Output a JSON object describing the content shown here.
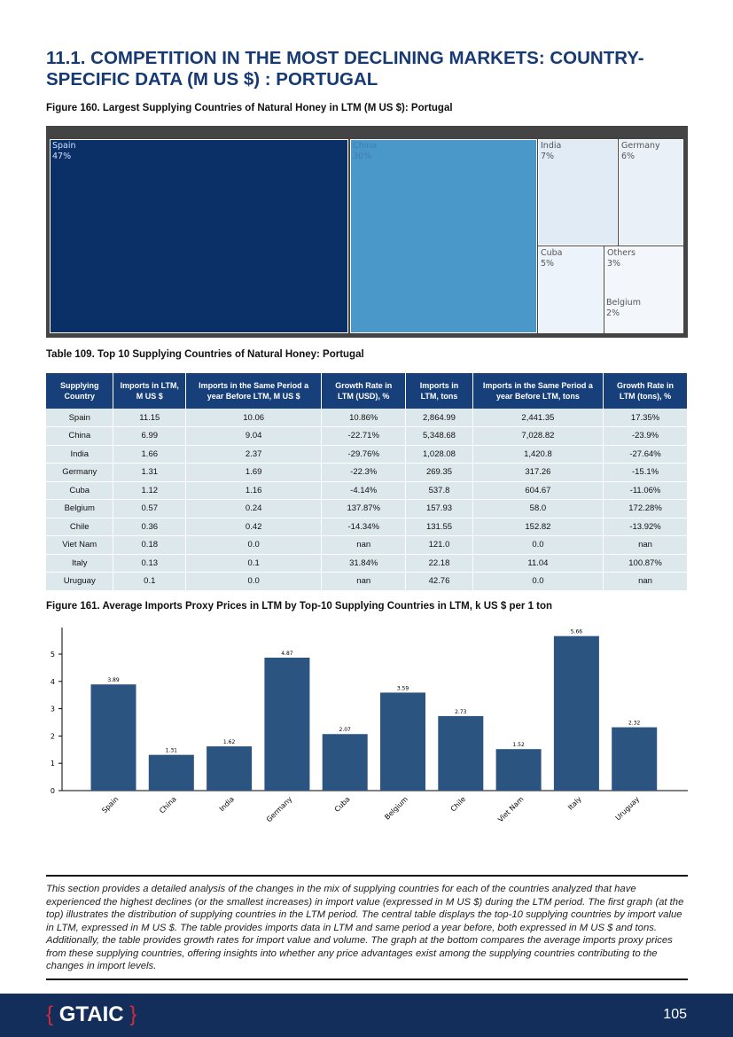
{
  "header": {
    "title": "11.1. COMPETITION IN THE MOST DECLINING MARKETS: COUNTRY-SPECIFIC DATA (M US $) : PORTUGAL"
  },
  "figure160": {
    "caption": "Figure 160. Largest Supplying Countries of Natural Honey in LTM (M US $): Portugal",
    "cells": [
      {
        "name": "Spain",
        "pct": "47%",
        "color": "#0b3068",
        "text": "#cfe0ff"
      },
      {
        "name": "China",
        "pct": "30%",
        "color": "#4a98c9",
        "text": "#3d7fb0"
      },
      {
        "name": "India",
        "pct": "7%",
        "color": "#e1ebf5",
        "text": "#555"
      },
      {
        "name": "Germany",
        "pct": "6%",
        "color": "#e9f0f8",
        "text": "#555"
      },
      {
        "name": "Cuba",
        "pct": "5%",
        "color": "#edf3fa",
        "text": "#555"
      },
      {
        "name": "Others",
        "pct": "3%",
        "color": "#f3f7fc",
        "text": "#555"
      },
      {
        "name": "Belgium",
        "pct": "2%",
        "color": "#f3f7fc",
        "text": "#555"
      }
    ]
  },
  "table109": {
    "caption": "Table 109. Top 10 Supplying Countries of Natural Honey: Portugal",
    "headers": [
      "Supplying Country",
      "Imports in LTM, M US $",
      "Imports in the Same Period a year Before LTM, M US $",
      "Growth Rate in LTM (USD), %",
      "Imports in LTM, tons",
      "Imports in the Same Period a year Before LTM, tons",
      "Growth Rate in LTM (tons), %"
    ],
    "rows": [
      [
        "Spain",
        "11.15",
        "10.06",
        "10.86%",
        "2,864.99",
        "2,441.35",
        "17.35%"
      ],
      [
        "China",
        "6.99",
        "9.04",
        "-22.71%",
        "5,348.68",
        "7,028.82",
        "-23.9%"
      ],
      [
        "India",
        "1.66",
        "2.37",
        "-29.76%",
        "1,028.08",
        "1,420.8",
        "-27.64%"
      ],
      [
        "Germany",
        "1.31",
        "1.69",
        "-22.3%",
        "269.35",
        "317.26",
        "-15.1%"
      ],
      [
        "Cuba",
        "1.12",
        "1.16",
        "-4.14%",
        "537.8",
        "604.67",
        "-11.06%"
      ],
      [
        "Belgium",
        "0.57",
        "0.24",
        "137.87%",
        "157.93",
        "58.0",
        "172.28%"
      ],
      [
        "Chile",
        "0.36",
        "0.42",
        "-14.34%",
        "131.55",
        "152.82",
        "-13.92%"
      ],
      [
        "Viet Nam",
        "0.18",
        "0.0",
        "nan",
        "121.0",
        "0.0",
        "nan"
      ],
      [
        "Italy",
        "0.13",
        "0.1",
        "31.84%",
        "22.18",
        "11.04",
        "100.87%"
      ],
      [
        "Uruguay",
        "0.1",
        "0.0",
        "nan",
        "42.76",
        "0.0",
        "nan"
      ]
    ]
  },
  "figure161": {
    "caption": "Figure 161. Average Imports Proxy Prices in LTM by Top-10 Supplying Countries in LTM, k US $ per 1 ton"
  },
  "chart_data": {
    "type": "bar",
    "categories": [
      "Spain",
      "China",
      "India",
      "Germany",
      "Cuba",
      "Belgium",
      "Chile",
      "Viet Nam",
      "Italy",
      "Uruguay"
    ],
    "values": [
      3.89,
      1.31,
      1.62,
      4.87,
      2.07,
      3.59,
      2.73,
      1.52,
      5.66,
      2.32
    ],
    "labels": [
      "3.89",
      "1.31",
      "1.62",
      "4.87",
      "2.07",
      "3.59",
      "2.73",
      "1.52",
      "5.66",
      "2.32"
    ],
    "yticks": [
      "0",
      "1",
      "2",
      "3",
      "4",
      "5"
    ],
    "ylim": [
      0,
      5.9
    ],
    "color": "#2b5580",
    "grid": false
  },
  "description": "This section provides a detailed analysis of the changes in the mix of supplying countries for each of the countries analyzed that have experienced the highest declines (or the smallest increases) in import value (expressed in M US $) during the LTM period. The first graph (at the top) illustrates the distribution of supplying countries in the LTM period. The central table displays the top-10 supplying countries by import value in LTM, expressed in M US $. The table provides imports data in LTM and same period a year before, both expressed in M US $ and tons. Additionally, the table provides growth rates for import value and volume. The graph at the bottom compares the average imports proxy prices from these supplying countries, offering insights into whether any price advantages exist among the supplying countries contributing to the changes in import levels.",
  "footer": {
    "logo": "GTAIC",
    "page": "105"
  }
}
